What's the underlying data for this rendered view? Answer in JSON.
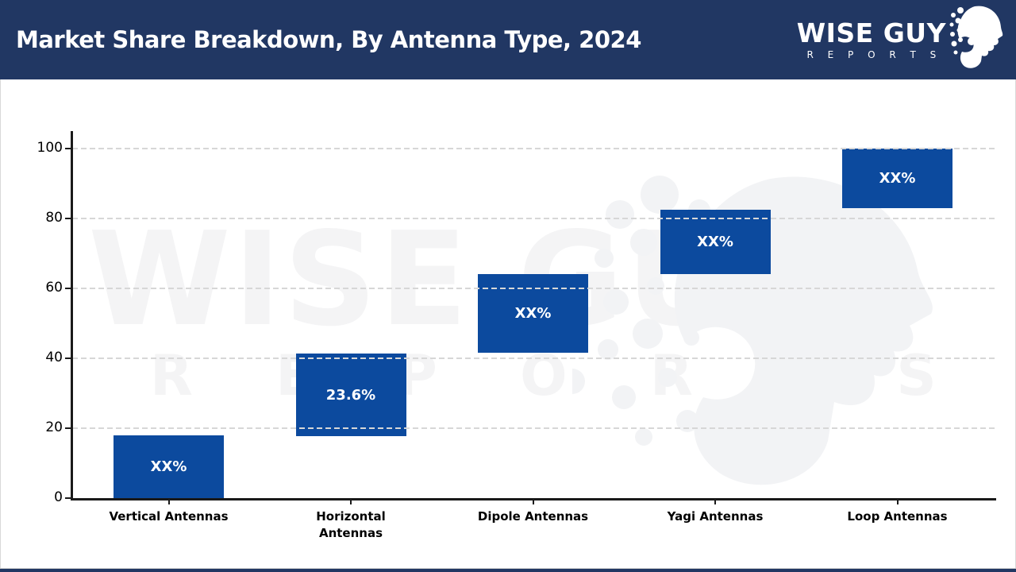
{
  "header": {
    "title": "Market Share Breakdown, By Antenna Type, 2024",
    "logo": {
      "line1": "WISE GUY",
      "line2": "R E P O R T S"
    }
  },
  "watermark": {
    "line1": "WISE GUY",
    "line2": "R E P O R T S"
  },
  "colors": {
    "header_bg": "#213763",
    "bar": "#0c4a9e",
    "grid": "#d7d7d7",
    "axis": "#1a1a1a",
    "bar_label": "#ffffff",
    "watermark": "#f4f4f5"
  },
  "chart_data": {
    "type": "bar",
    "subtype": "floating-waterfall",
    "title": "Market Share Breakdown, By Antenna Type, 2024",
    "categories": [
      "Vertical Antennas",
      "Horizontal\nAntennas",
      "Dipole Antennas",
      "Yagi Antennas",
      "Loop Antennas"
    ],
    "segments": [
      {
        "start": 0,
        "end": 18,
        "label": "XX%"
      },
      {
        "start": 17.7,
        "end": 41.3,
        "label": "23.6%"
      },
      {
        "start": 41.6,
        "end": 64.1,
        "label": "XX%"
      },
      {
        "start": 64.2,
        "end": 82.6,
        "label": "XX%"
      },
      {
        "start": 82.9,
        "end": 100,
        "label": "XX%"
      }
    ],
    "y_ticks": [
      0,
      20,
      40,
      60,
      80,
      100
    ],
    "ylim": [
      0,
      104
    ],
    "xlabel": "",
    "ylabel": "",
    "legend": "none",
    "grid": "dashed-horizontal",
    "bar_color": "#0c4a9e"
  }
}
